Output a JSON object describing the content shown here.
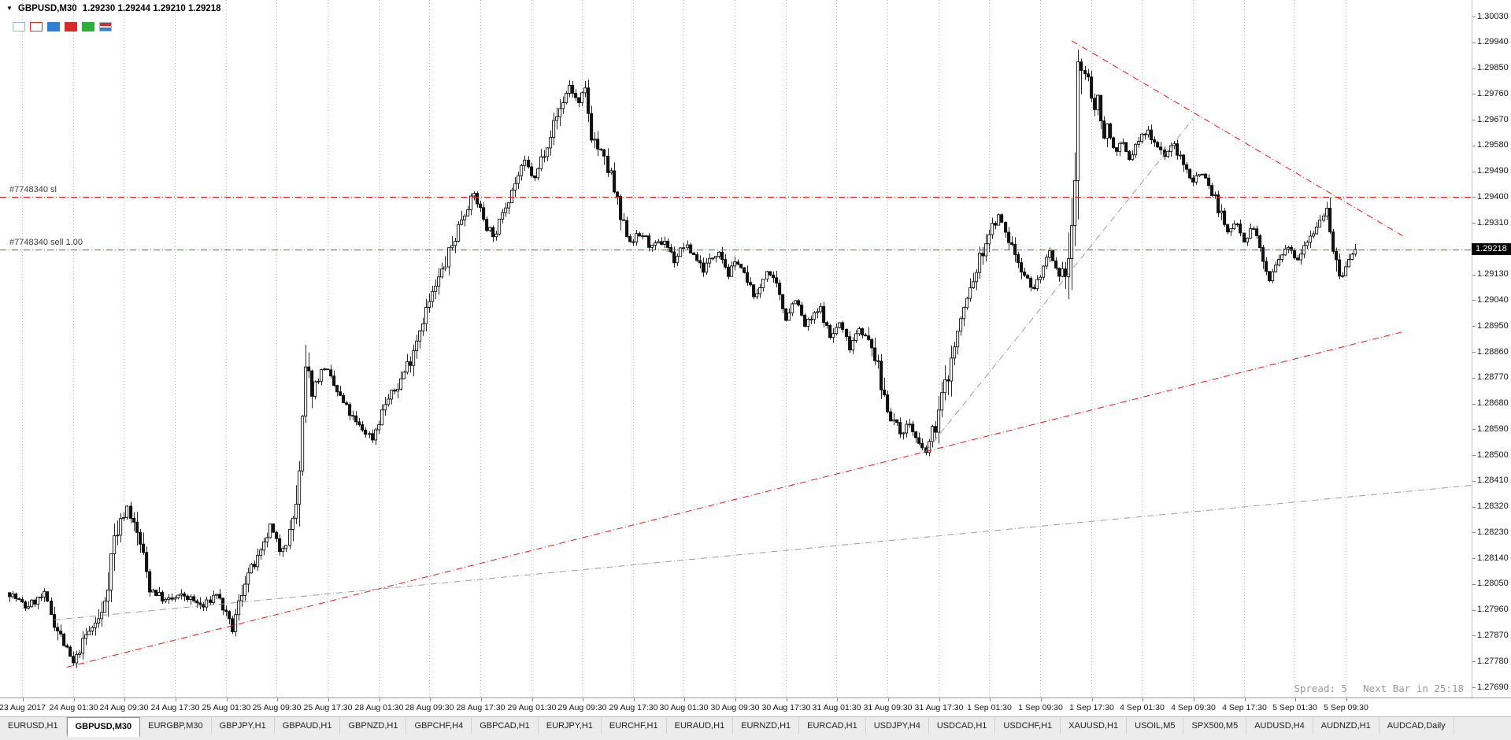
{
  "header": {
    "symbol": "GBPUSD,M30",
    "ohlc": "1.29230 1.29244 1.29210 1.29218",
    "swatches": [
      {
        "name": "white-swatch",
        "fill": "#ffffff",
        "border": "#9bb8cf",
        "type": "solid"
      },
      {
        "name": "red-outline-swatch",
        "fill": "#ffffff",
        "border": "#d23333",
        "type": "solid"
      },
      {
        "name": "blue-swatch",
        "fill": "#2f7fd4",
        "border": "#2f7fd4",
        "type": "solid"
      },
      {
        "name": "red-swatch",
        "fill": "#d42b2b",
        "border": "#d42b2b",
        "type": "solid"
      },
      {
        "name": "green-swatch",
        "fill": "#2fae3a",
        "border": "#2fae3a",
        "type": "solid"
      },
      {
        "name": "flag-swatch",
        "fill": "flag",
        "border": "#9bb8cf",
        "type": "flag"
      }
    ]
  },
  "orders": {
    "sl_label": "#7748340 sl",
    "sell_label": "#7748340 sell 1.00"
  },
  "status": {
    "spread": "Spread: 5",
    "next_bar": "Next Bar in 25:18"
  },
  "price_tag": "1.29218",
  "tabs": {
    "active_index": 1,
    "items": [
      "EURUSD,H1",
      "GBPUSD,M30",
      "EURGBP,M30",
      "GBPJPY,H1",
      "GBPAUD,H1",
      "GBPNZD,H1",
      "GBPCHF,H4",
      "GBPCAD,H1",
      "EURJPY,H1",
      "EURCHF,H1",
      "EURAUD,H1",
      "EURNZD,H1",
      "EURCAD,H1",
      "USDJPY,H4",
      "USDCAD,H1",
      "USDCHF,H1",
      "XAUUSD,H1",
      "USOIL,M5",
      "SPX500,M5",
      "AUDUSD,H4",
      "AUDNZD,H1",
      "AUDCAD,Daily"
    ]
  },
  "chart_data": {
    "type": "candlestick",
    "symbol": "GBPUSD",
    "timeframe": "M30",
    "ohlc_current": {
      "open": "1.29230",
      "high": "1.29244",
      "low": "1.29210",
      "close": "1.29218"
    },
    "current_price": 1.29218,
    "bars_count": 424,
    "candle_up_fill": "#ffffff",
    "candle_down_fill": "#111111",
    "candle_stroke": "#111111",
    "grid_color": "#b9b9b9",
    "y_axis": {
      "min": 1.2769,
      "max": 1.3003,
      "step": 0.0009,
      "labels": [
        "1.30030",
        "1.29940",
        "1.29850",
        "1.29760",
        "1.29670",
        "1.29580",
        "1.29490",
        "1.29400",
        "1.29310",
        "1.29220",
        "1.29130",
        "1.29040",
        "1.28950",
        "1.28860",
        "1.28770",
        "1.28680",
        "1.28590",
        "1.28500",
        "1.28410",
        "1.28320",
        "1.28230",
        "1.28140",
        "1.28050",
        "1.27960",
        "1.27870",
        "1.27780",
        "1.27690"
      ]
    },
    "x_axis": {
      "first_label_bar": 4,
      "bars_per_label": 16,
      "labels": [
        "23 Aug 2017",
        "24 Aug 01:30",
        "24 Aug 09:30",
        "24 Aug 17:30",
        "25 Aug 01:30",
        "25 Aug 09:30",
        "25 Aug 17:30",
        "28 Aug 01:30",
        "28 Aug 09:30",
        "28 Aug 17:30",
        "29 Aug 01:30",
        "29 Aug 09:30",
        "29 Aug 17:30",
        "30 Aug 01:30",
        "30 Aug 09:30",
        "30 Aug 17:30",
        "31 Aug 01:30",
        "31 Aug 09:30",
        "31 Aug 17:30",
        "1 Sep 01:30",
        "1 Sep 09:30",
        "1 Sep 17:30",
        "4 Sep 01:30",
        "4 Sep 09:30",
        "4 Sep 17:30",
        "5 Sep 01:30",
        "5 Sep 09:30"
      ]
    },
    "price_path": [
      [
        0,
        1.2802
      ],
      [
        5,
        1.2797
      ],
      [
        11,
        1.2801
      ],
      [
        15,
        1.2789
      ],
      [
        20,
        1.2777
      ],
      [
        24,
        1.2787
      ],
      [
        29,
        1.2794
      ],
      [
        33,
        1.2821
      ],
      [
        37,
        1.2832
      ],
      [
        41,
        1.2819
      ],
      [
        44,
        1.2804
      ],
      [
        49,
        1.2799
      ],
      [
        55,
        1.2801
      ],
      [
        61,
        1.2797
      ],
      [
        65,
        1.2802
      ],
      [
        70,
        1.2789
      ],
      [
        74,
        1.2807
      ],
      [
        79,
        1.2815
      ],
      [
        82,
        1.2825
      ],
      [
        85,
        1.2817
      ],
      [
        88,
        1.2822
      ],
      [
        91,
        1.284
      ],
      [
        93,
        1.2878
      ],
      [
        95,
        1.2873
      ],
      [
        99,
        1.2881
      ],
      [
        102,
        1.2874
      ],
      [
        105,
        1.2868
      ],
      [
        109,
        1.2861
      ],
      [
        114,
        1.2856
      ],
      [
        118,
        1.2868
      ],
      [
        122,
        1.2874
      ],
      [
        126,
        1.2884
      ],
      [
        130,
        1.2898
      ],
      [
        135,
        1.2911
      ],
      [
        139,
        1.2923
      ],
      [
        142,
        1.2933
      ],
      [
        146,
        1.2941
      ],
      [
        150,
        1.293
      ],
      [
        153,
        1.2926
      ],
      [
        155,
        1.2936
      ],
      [
        159,
        1.2945
      ],
      [
        162,
        1.2952
      ],
      [
        165,
        1.2946
      ],
      [
        168,
        1.2957
      ],
      [
        172,
        1.2968
      ],
      [
        176,
        1.2979
      ],
      [
        179,
        1.2972
      ],
      [
        181,
        1.2977
      ],
      [
        183,
        1.2962
      ],
      [
        186,
        1.2955
      ],
      [
        189,
        1.2947
      ],
      [
        192,
        1.2932
      ],
      [
        195,
        1.2925
      ],
      [
        199,
        1.2927
      ],
      [
        202,
        1.2922
      ],
      [
        206,
        1.2925
      ],
      [
        209,
        1.2918
      ],
      [
        212,
        1.2923
      ],
      [
        215,
        1.292
      ],
      [
        218,
        1.2915
      ],
      [
        223,
        1.2922
      ],
      [
        226,
        1.2913
      ],
      [
        229,
        1.2918
      ],
      [
        232,
        1.291
      ],
      [
        235,
        1.2905
      ],
      [
        238,
        1.2915
      ],
      [
        241,
        1.2908
      ],
      [
        244,
        1.2898
      ],
      [
        247,
        1.2905
      ],
      [
        250,
        1.2895
      ],
      [
        255,
        1.2901
      ],
      [
        258,
        1.2891
      ],
      [
        261,
        1.2896
      ],
      [
        264,
        1.2888
      ],
      [
        267,
        1.2895
      ],
      [
        272,
        1.2885
      ],
      [
        274,
        1.2874
      ],
      [
        277,
        1.2864
      ],
      [
        280,
        1.2858
      ],
      [
        283,
        1.2861
      ],
      [
        286,
        1.2853
      ],
      [
        288,
        1.2851
      ],
      [
        291,
        1.2861
      ],
      [
        294,
        1.2874
      ],
      [
        297,
        1.2888
      ],
      [
        300,
        1.2901
      ],
      [
        303,
        1.2911
      ],
      [
        305,
        1.2918
      ],
      [
        308,
        1.2928
      ],
      [
        311,
        1.2933
      ],
      [
        314,
        1.2925
      ],
      [
        317,
        1.2918
      ],
      [
        320,
        1.2911
      ],
      [
        322,
        1.2908
      ],
      [
        324,
        1.2913
      ],
      [
        327,
        1.292
      ],
      [
        330,
        1.2911
      ],
      [
        333,
        1.2918
      ],
      [
        335,
        1.2941
      ],
      [
        336,
        1.2989
      ],
      [
        338,
        1.2979
      ],
      [
        339,
        1.2984
      ],
      [
        341,
        1.2968
      ],
      [
        342,
        1.2973
      ],
      [
        344,
        1.2962
      ],
      [
        345,
        1.2965
      ],
      [
        347,
        1.2957
      ],
      [
        350,
        1.2958
      ],
      [
        352,
        1.2953
      ],
      [
        355,
        1.296
      ],
      [
        358,
        1.2963
      ],
      [
        361,
        1.2958
      ],
      [
        363,
        1.2955
      ],
      [
        366,
        1.2958
      ],
      [
        369,
        1.2951
      ],
      [
        372,
        1.2946
      ],
      [
        375,
        1.2949
      ],
      [
        377,
        1.2944
      ],
      [
        380,
        1.2937
      ],
      [
        383,
        1.2927
      ],
      [
        386,
        1.2932
      ],
      [
        388,
        1.2925
      ],
      [
        391,
        1.293
      ],
      [
        393,
        1.2921
      ],
      [
        396,
        1.2911
      ],
      [
        399,
        1.2918
      ],
      [
        402,
        1.2922
      ],
      [
        405,
        1.2919
      ],
      [
        407,
        1.2924
      ],
      [
        409,
        1.2927
      ],
      [
        412,
        1.2932
      ],
      [
        414,
        1.2937
      ],
      [
        416,
        1.2922
      ],
      [
        418,
        1.2911
      ],
      [
        421,
        1.2918
      ],
      [
        423,
        1.29218
      ]
    ],
    "h_lines": [
      {
        "price": 1.294,
        "color": "#e21b1b",
        "label": "#7748340 sl"
      },
      {
        "price": 1.29218,
        "color": "#1c9a1c",
        "label": "#7748340 sell 1.00"
      }
    ],
    "trend_lines": [
      {
        "from": [
          18,
          1.2776
        ],
        "to": [
          438,
          1.2893
        ],
        "color": "#e21b1b"
      },
      {
        "from": [
          334,
          1.29945
        ],
        "to": [
          438,
          1.29265
        ],
        "color": "#e21b1b"
      },
      {
        "from": [
          288,
          1.28512
        ],
        "to": [
          372,
          1.29672
        ],
        "color": "#9a9a9a"
      },
      {
        "from": [
          14,
          1.27925
        ],
        "to": [
          460,
          1.28395
        ],
        "color": "#9a9a9a"
      }
    ]
  }
}
